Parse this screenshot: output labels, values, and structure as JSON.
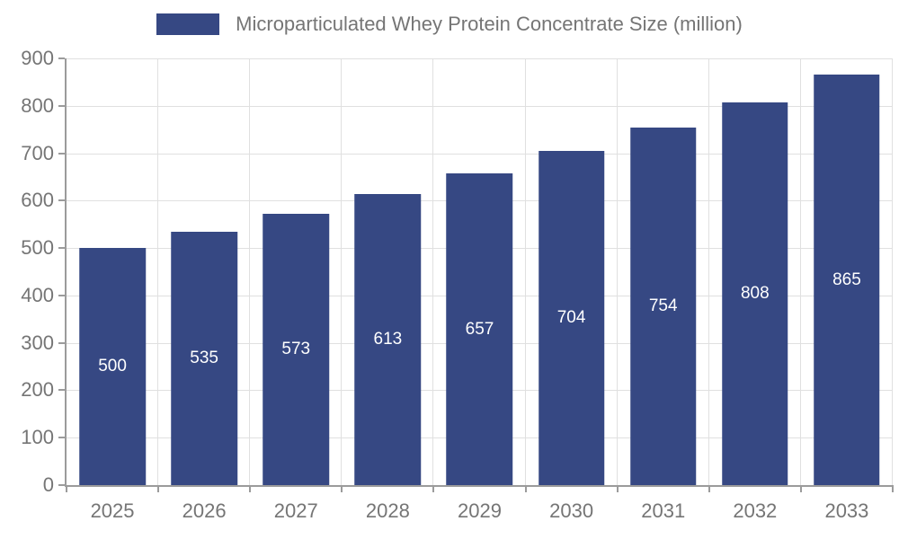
{
  "chart_data": {
    "type": "bar",
    "title": "Microparticulated Whey Protein Concentrate Size (million)",
    "categories": [
      "2025",
      "2026",
      "2027",
      "2028",
      "2029",
      "2030",
      "2031",
      "2032",
      "2033"
    ],
    "values": [
      500,
      535,
      573,
      613,
      657,
      704,
      754,
      808,
      865
    ],
    "xlabel": "",
    "ylabel": "",
    "ylim": [
      0,
      900
    ],
    "y_tick_step": 100,
    "y_tick_labels": [
      "0",
      "100",
      "200",
      "300",
      "400",
      "500",
      "600",
      "700",
      "800",
      "900"
    ],
    "grid": true,
    "legend_position": "top",
    "colors": {
      "bar": "#364883",
      "bar_value_text": "#ffffff",
      "axis_line": "#9b9b9b",
      "grid_line": "#e0e0e0",
      "tick_text": "#757575",
      "legend_text": "#757575"
    }
  }
}
